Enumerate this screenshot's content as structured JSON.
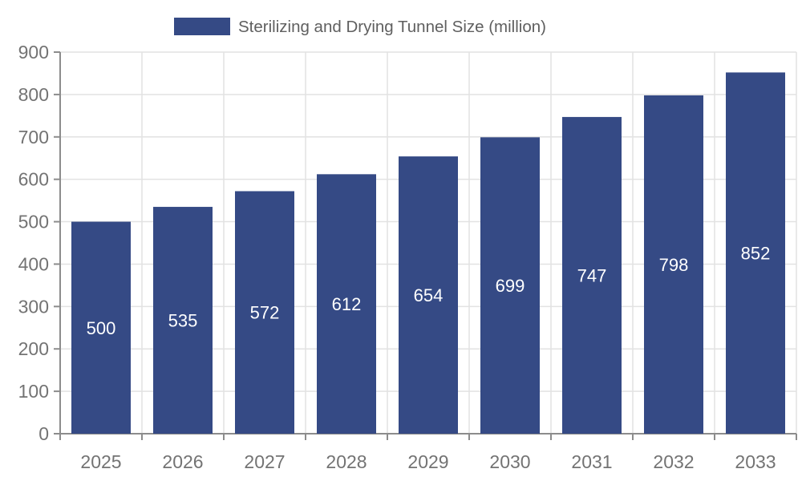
{
  "legend": {
    "label": "Sterilizing and Drying Tunnel Size (million)",
    "position": "top-center"
  },
  "colors": {
    "background": "#ffffff",
    "bar": "#354a85",
    "axis_line": "#8c8c8c",
    "grid_line": "#e2e2e2",
    "tick_label": "#737373",
    "legend_text": "#5f5f5f",
    "value_label": "#ffffff"
  },
  "chart_data": {
    "type": "bar",
    "title": "Sterilizing and Drying Tunnel Size (million)",
    "categories": [
      "2025",
      "2026",
      "2027",
      "2028",
      "2029",
      "2030",
      "2031",
      "2032",
      "2033"
    ],
    "values": [
      500,
      535,
      572,
      612,
      654,
      699,
      747,
      798,
      852
    ],
    "xlabel": "",
    "ylabel": "",
    "ylim": [
      0,
      900
    ],
    "ytick_interval": 100,
    "ytick_labels": [
      "0",
      "100",
      "200",
      "300",
      "400",
      "500",
      "600",
      "700",
      "800",
      "900"
    ],
    "grid": true,
    "value_labels_shown": true,
    "value_label_position": "center-of-bar",
    "legend_position": "top-center"
  }
}
